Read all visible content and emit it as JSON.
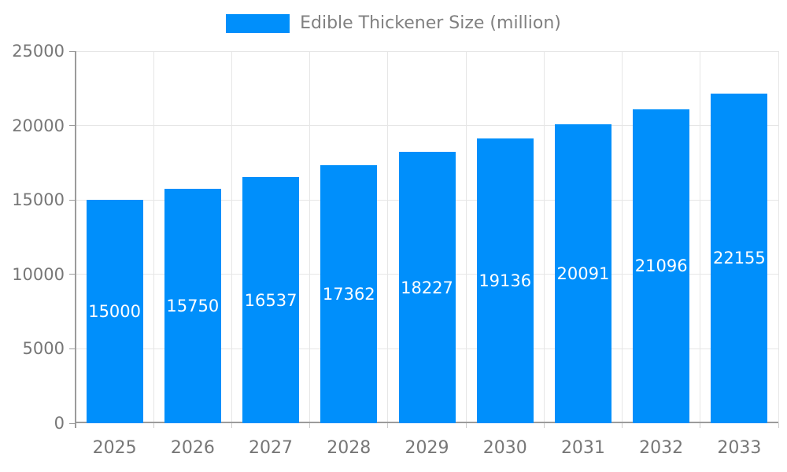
{
  "legend": {
    "label": "Edible Thickener Size (million)"
  },
  "chart_data": {
    "type": "bar",
    "title": "Edible Thickener Size (million)",
    "categories": [
      "2025",
      "2026",
      "2027",
      "2028",
      "2029",
      "2030",
      "2031",
      "2032",
      "2033"
    ],
    "series": [
      {
        "name": "Edible Thickener Size (million)",
        "values": [
          15000,
          15750,
          16537,
          17362,
          18227,
          19136,
          20091,
          21096,
          22155
        ]
      }
    ],
    "xlabel": "",
    "ylabel": "",
    "ylim": [
      0,
      25000
    ],
    "y_ticks": [
      0,
      5000,
      10000,
      15000,
      20000,
      25000
    ],
    "grid": true,
    "value_labels": "centered-inside-bars",
    "legend_position": "top-center",
    "colors": {
      "bar": "#008FFB",
      "value_label": "#FFFFFF",
      "axis_text": "#777777",
      "legend_text": "#808080",
      "grid_line": "#E6E6E6",
      "axis_line": "#9B9B9B",
      "minor_tick": "#CCCCCC"
    }
  }
}
